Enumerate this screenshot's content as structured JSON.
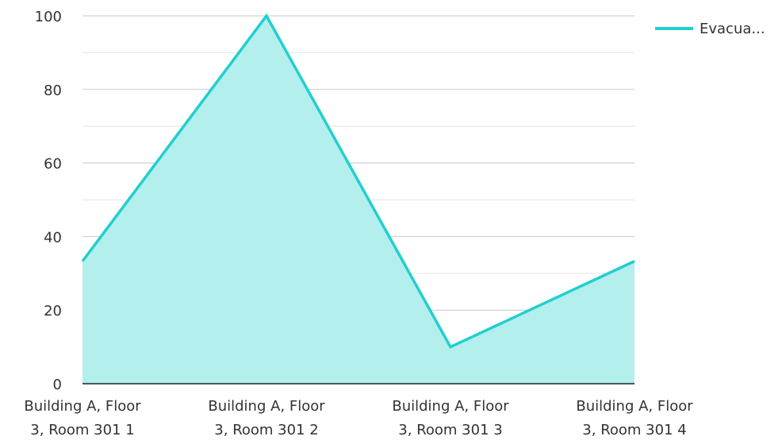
{
  "chart_data": {
    "type": "area",
    "categories": [
      [
        "Building A, Floor",
        "3, Room 301 1"
      ],
      [
        "Building A, Floor",
        "3, Room 301 2"
      ],
      [
        "Building A, Floor",
        "3, Room 301 3"
      ],
      [
        "Building A, Floor",
        "3, Room 301 4"
      ]
    ],
    "series": [
      {
        "name": "Evacua...",
        "values": [
          33.3,
          100,
          10,
          33.3
        ],
        "color": "#22cfcf",
        "fill_color": "#b2efed"
      }
    ],
    "ylim": [
      0,
      100
    ],
    "yticks": [
      0,
      20,
      40,
      60,
      80,
      100
    ],
    "grid": true,
    "legend_position": "top-right",
    "title": "",
    "xlabel": "",
    "ylabel": ""
  }
}
